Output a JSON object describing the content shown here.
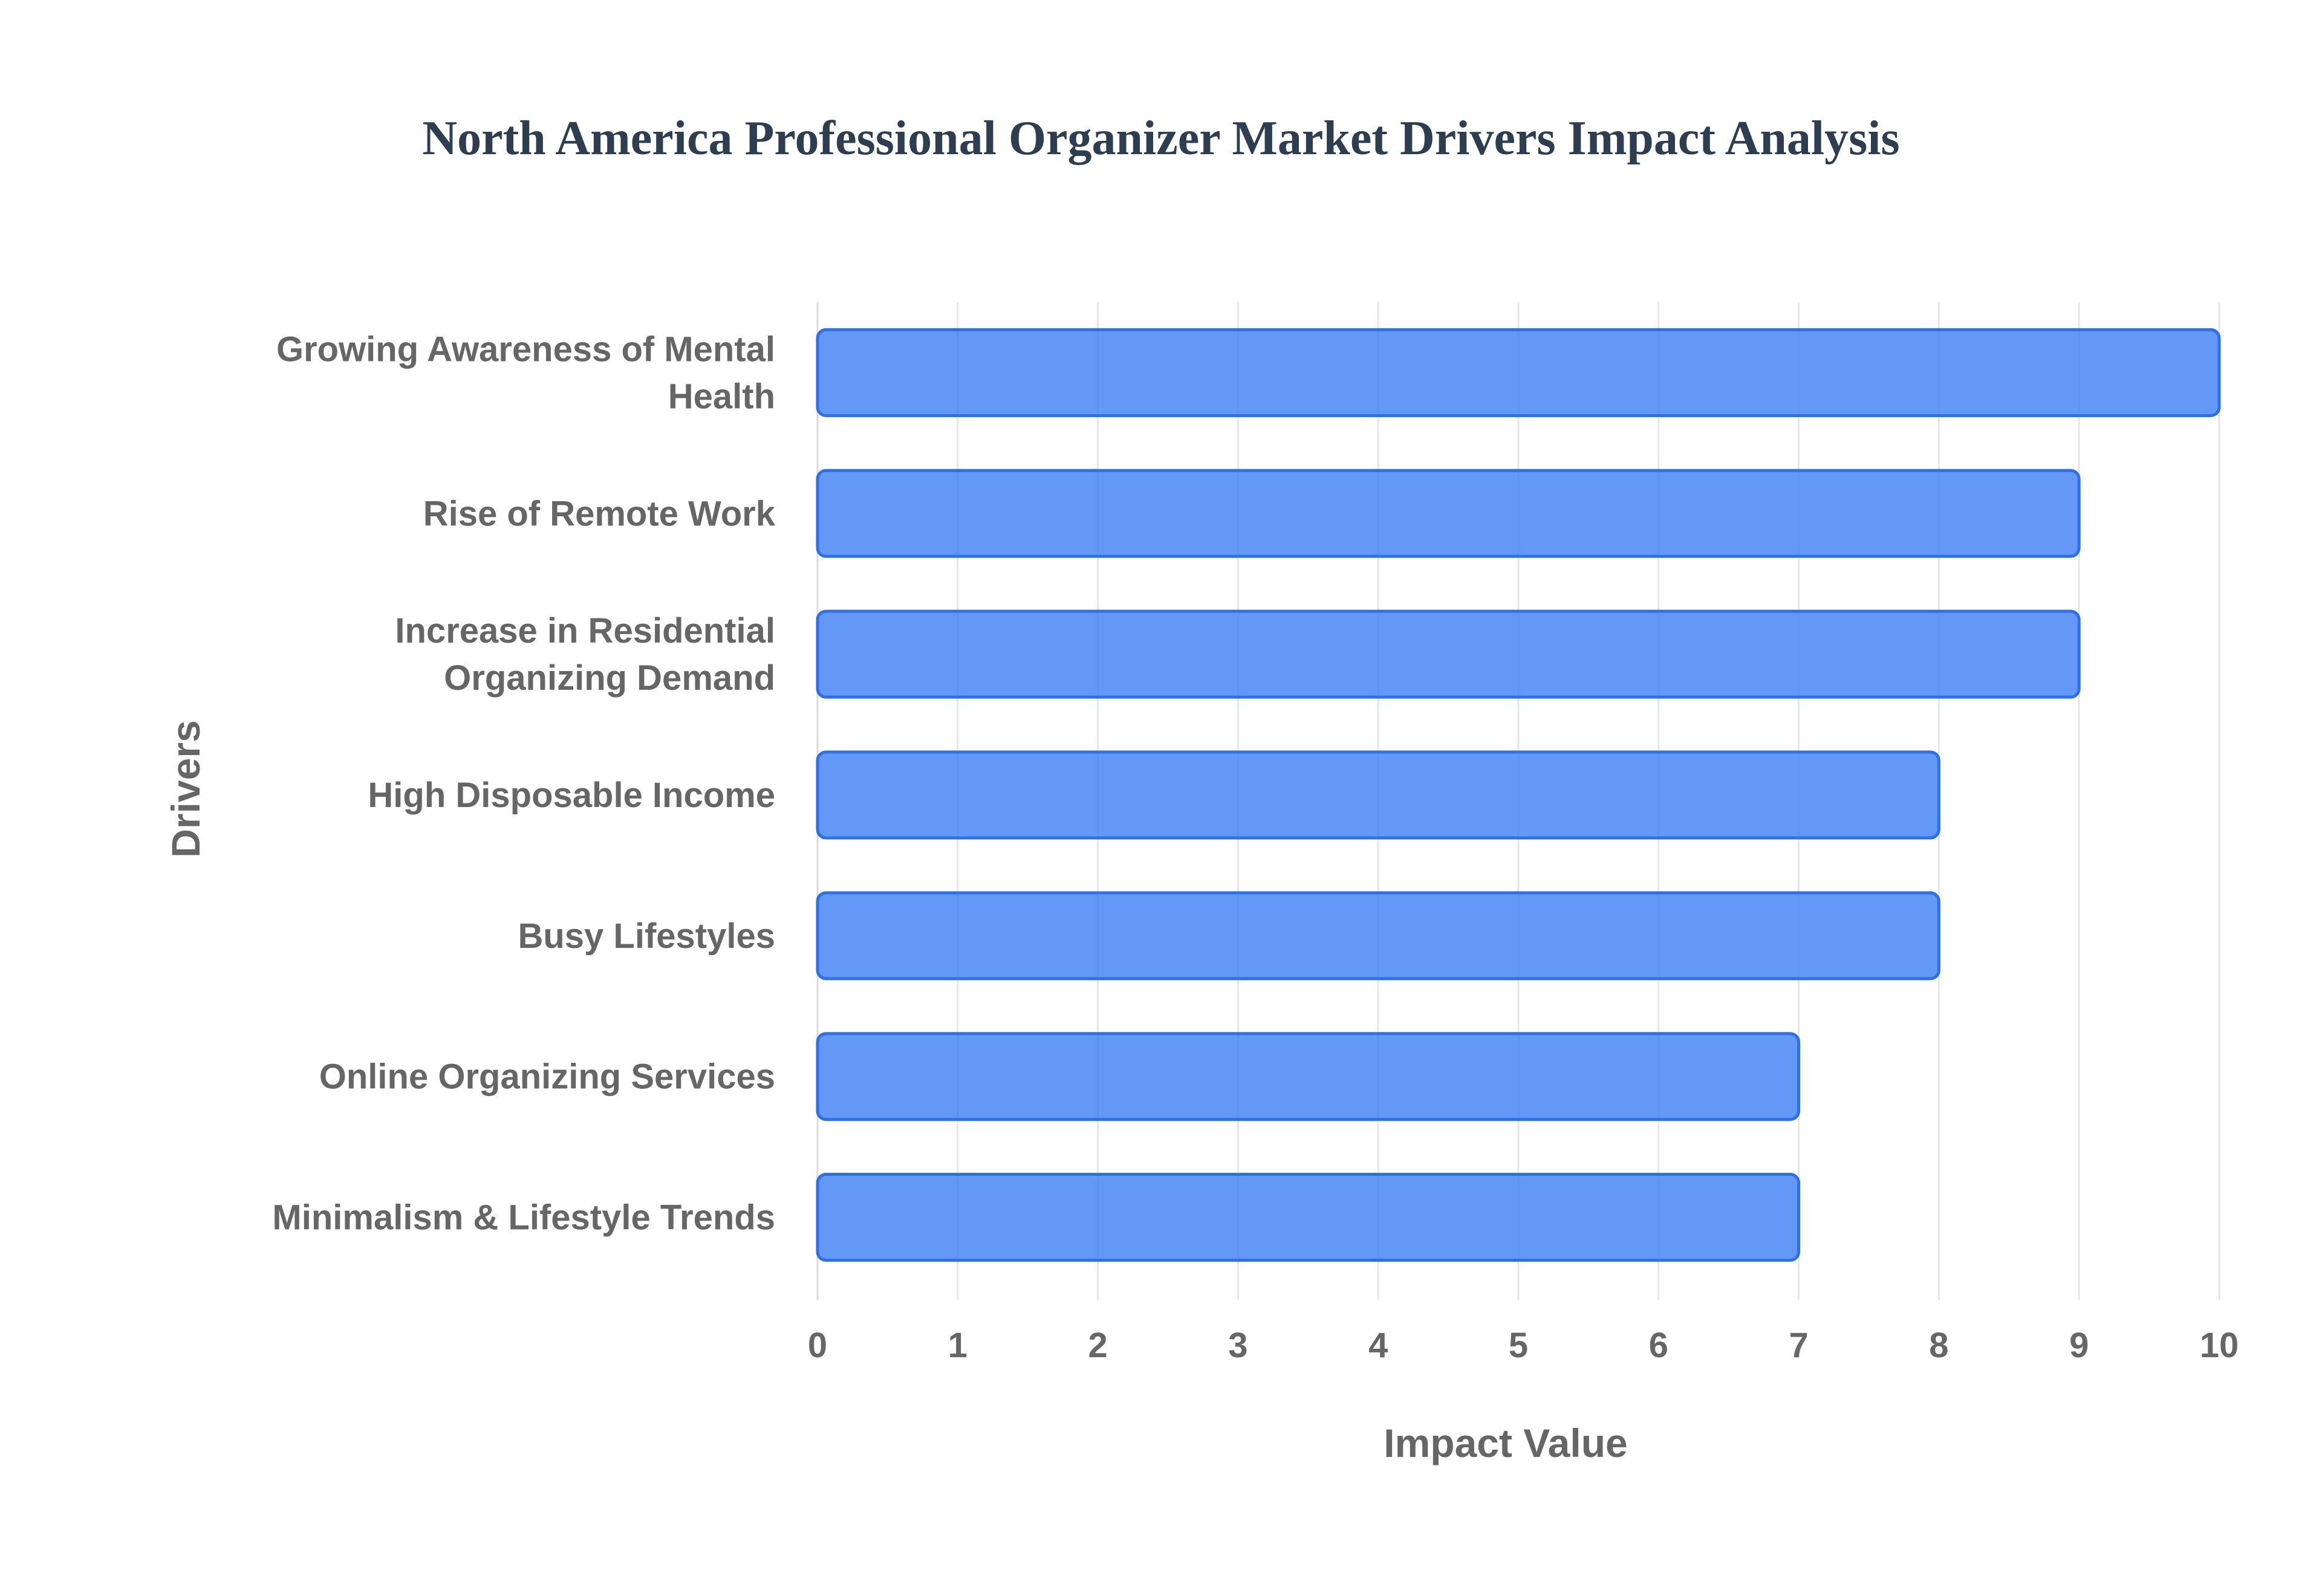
{
  "chart_data": {
    "type": "bar",
    "orientation": "horizontal",
    "title": "North America Professional Organizer Market Drivers Impact Analysis",
    "xlabel": "Impact Value",
    "ylabel": "Drivers",
    "categories": [
      "Growing Awareness of Mental Health",
      "Rise of Remote Work",
      "Increase in Residential Organizing Demand",
      "High Disposable Income",
      "Busy Lifestyles",
      "Online Organizing Services",
      "Minimalism & Lifestyle Trends"
    ],
    "category_label_lines": [
      [
        "Growing Awareness of Mental",
        "Health"
      ],
      [
        "Rise of Remote Work"
      ],
      [
        "Increase in Residential",
        "Organizing Demand"
      ],
      [
        "High Disposable Income"
      ],
      [
        "Busy Lifestyles"
      ],
      [
        "Online Organizing Services"
      ],
      [
        "Minimalism & Lifestyle Trends"
      ]
    ],
    "values": [
      10,
      9,
      9,
      8,
      8,
      7,
      7
    ],
    "xlim": [
      0,
      10
    ],
    "xticks": [
      0,
      1,
      2,
      3,
      4,
      5,
      6,
      7,
      8,
      9,
      10
    ],
    "grid": true,
    "legend": "none",
    "colors": {
      "bar_fill": "#3d7ef5",
      "bar_fill_opacity": 0.8,
      "bar_stroke": "#2f6fe8",
      "title": "#2c3e50",
      "text": "#666666",
      "grid": "#e6e6e6"
    }
  }
}
